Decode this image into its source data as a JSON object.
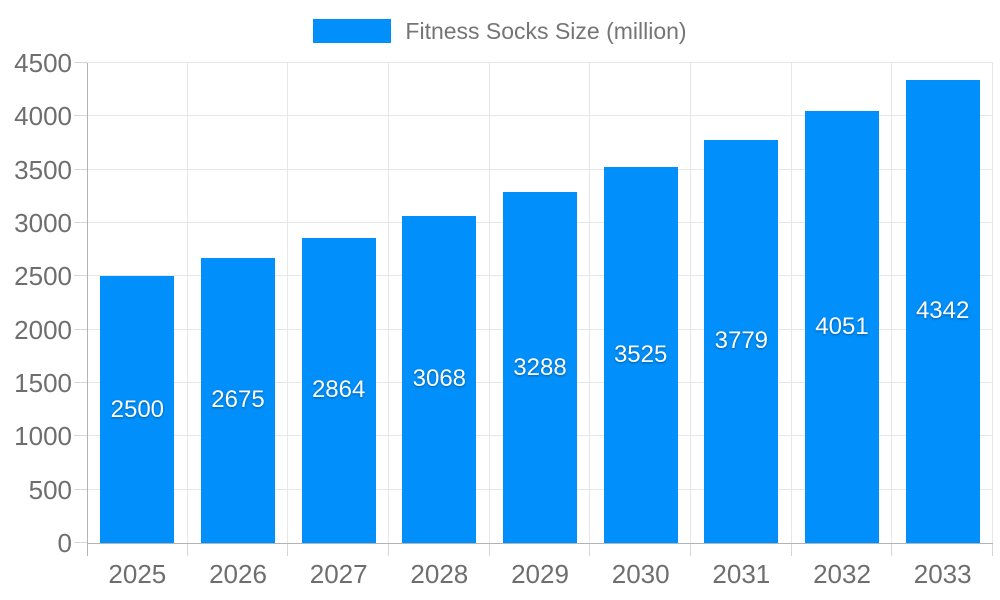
{
  "chart_data": {
    "type": "bar",
    "title": "Fitness Socks Size (million)",
    "categories": [
      "2025",
      "2026",
      "2027",
      "2028",
      "2029",
      "2030",
      "2031",
      "2032",
      "2033"
    ],
    "series": [
      {
        "name": "Fitness Socks Size (million)",
        "values": [
          2500,
          2675,
          2864,
          3068,
          3288,
          3525,
          3779,
          4051,
          4342
        ]
      }
    ],
    "data_labels_shown": true,
    "xlabel": "",
    "ylabel": "",
    "ylim": [
      0,
      4500
    ],
    "ytick_step": 500,
    "ytick_labels": [
      "0",
      "500",
      "1000",
      "1500",
      "2000",
      "2500",
      "3000",
      "3500",
      "4000",
      "4500"
    ],
    "grid": "on",
    "legend_position": "top",
    "colors": {
      "bar": "#008FFB",
      "grid_line": "#e7e7e7",
      "axis_line": "#b3b3b3",
      "tick_mark": "#d6d6d6",
      "axis_label": "#6e6e6e",
      "legend_label": "#757575",
      "data_label": "#ffffff",
      "background": "#ffffff"
    }
  }
}
